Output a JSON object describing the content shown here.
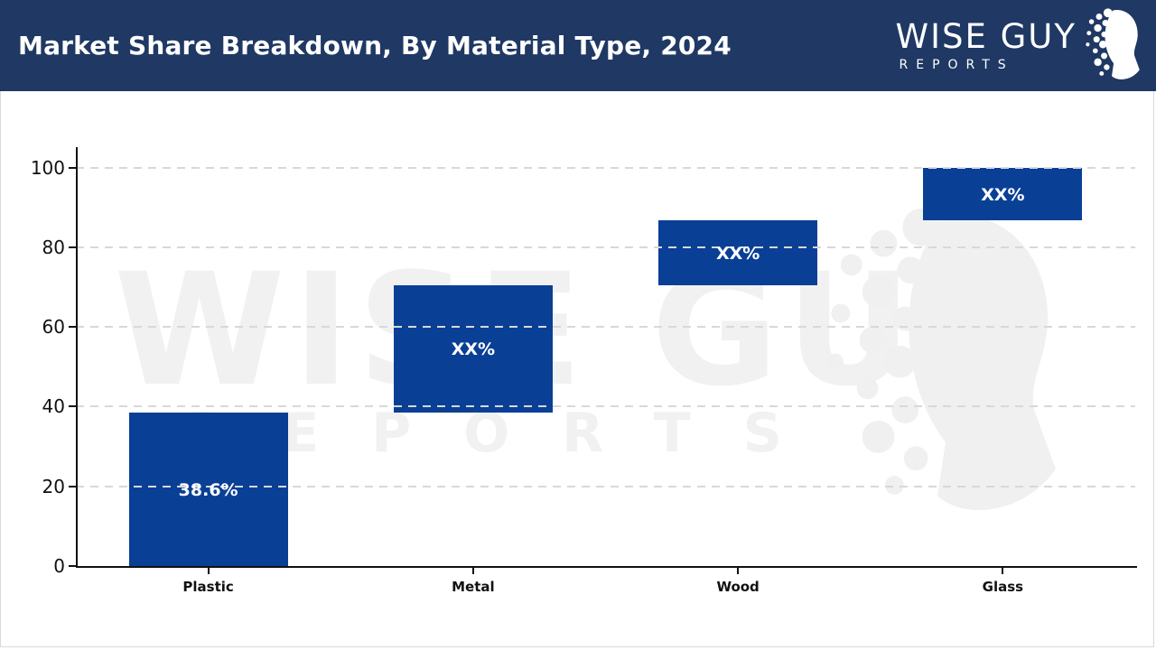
{
  "header": {
    "title": "Market Share Breakdown, By Material Type, 2024",
    "background_color": "#1f3864",
    "logo": {
      "wordmark": "WISE GUY",
      "subtext": "REPORTS",
      "head_icon": "dotted-head-profile"
    }
  },
  "watermark": {
    "line1": "WISE GUY",
    "line2": "REPORTS",
    "color": "#f1f1f1",
    "head_icon": "dotted-head-profile"
  },
  "chart_data": {
    "type": "bar",
    "subtype": "waterfall",
    "title": "Market Share Breakdown, By Material Type, 2024",
    "categories": [
      "Plastic",
      "Metal",
      "Wood",
      "Glass"
    ],
    "segments": [
      {
        "category": "Plastic",
        "start": 0,
        "end": 38.6,
        "label": "38.6%"
      },
      {
        "category": "Metal",
        "start": 38.6,
        "end": 70.5,
        "label": "XX%"
      },
      {
        "category": "Wood",
        "start": 70.5,
        "end": 86.8,
        "label": "XX%"
      },
      {
        "category": "Glass",
        "start": 86.8,
        "end": 100,
        "label": "XX%"
      }
    ],
    "bar_color": "#0a3f96",
    "bar_label_color": "#ffffff",
    "yticks": [
      0,
      20,
      40,
      60,
      80,
      100
    ],
    "ylim": [
      0,
      105
    ],
    "xlabel": "",
    "ylabel": "",
    "grid": {
      "axis": "y",
      "style": "dashed",
      "color": "#d8d8d8",
      "above_bars": true
    },
    "legend": "none"
  }
}
